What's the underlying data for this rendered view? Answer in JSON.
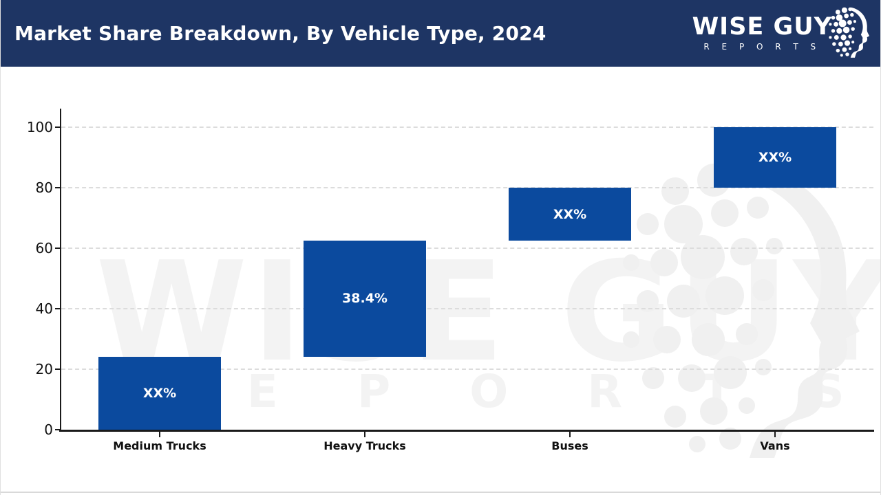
{
  "header": {
    "title": "Market Share Breakdown, By Vehicle Type, 2024"
  },
  "logo": {
    "line1": "WISE GUY",
    "line2": "R E P O R T S"
  },
  "watermark": {
    "line1": "WISE GUY",
    "line2": "R E P O R T S"
  },
  "colors": {
    "header_bg": "#1e3564",
    "bar": "#0b4a9e",
    "bar_label": "#ffffff",
    "grid": "#dcdcdc",
    "watermark": "#f3f3f3"
  },
  "chart_data": {
    "type": "bar",
    "subtype": "waterfall",
    "title": "Market Share Breakdown, By Vehicle Type, 2024",
    "categories": [
      "Medium Trucks",
      "Heavy Trucks",
      "Buses",
      "Vans"
    ],
    "segments": [
      {
        "category": "Medium Trucks",
        "start": 0,
        "end": 24.1,
        "label": "XX%"
      },
      {
        "category": "Heavy Trucks",
        "start": 24.1,
        "end": 62.5,
        "label": "38.4%",
        "value": 38.4
      },
      {
        "category": "Buses",
        "start": 62.5,
        "end": 80,
        "label": "XX%"
      },
      {
        "category": "Vans",
        "start": 80,
        "end": 100,
        "label": "XX%"
      }
    ],
    "xlabel": "",
    "ylabel": "",
    "ylim": [
      0,
      105
    ],
    "yticks": [
      0,
      20,
      40,
      60,
      80,
      100
    ],
    "grid": "horizontal dashed, at major y ticks",
    "legend": "none"
  }
}
